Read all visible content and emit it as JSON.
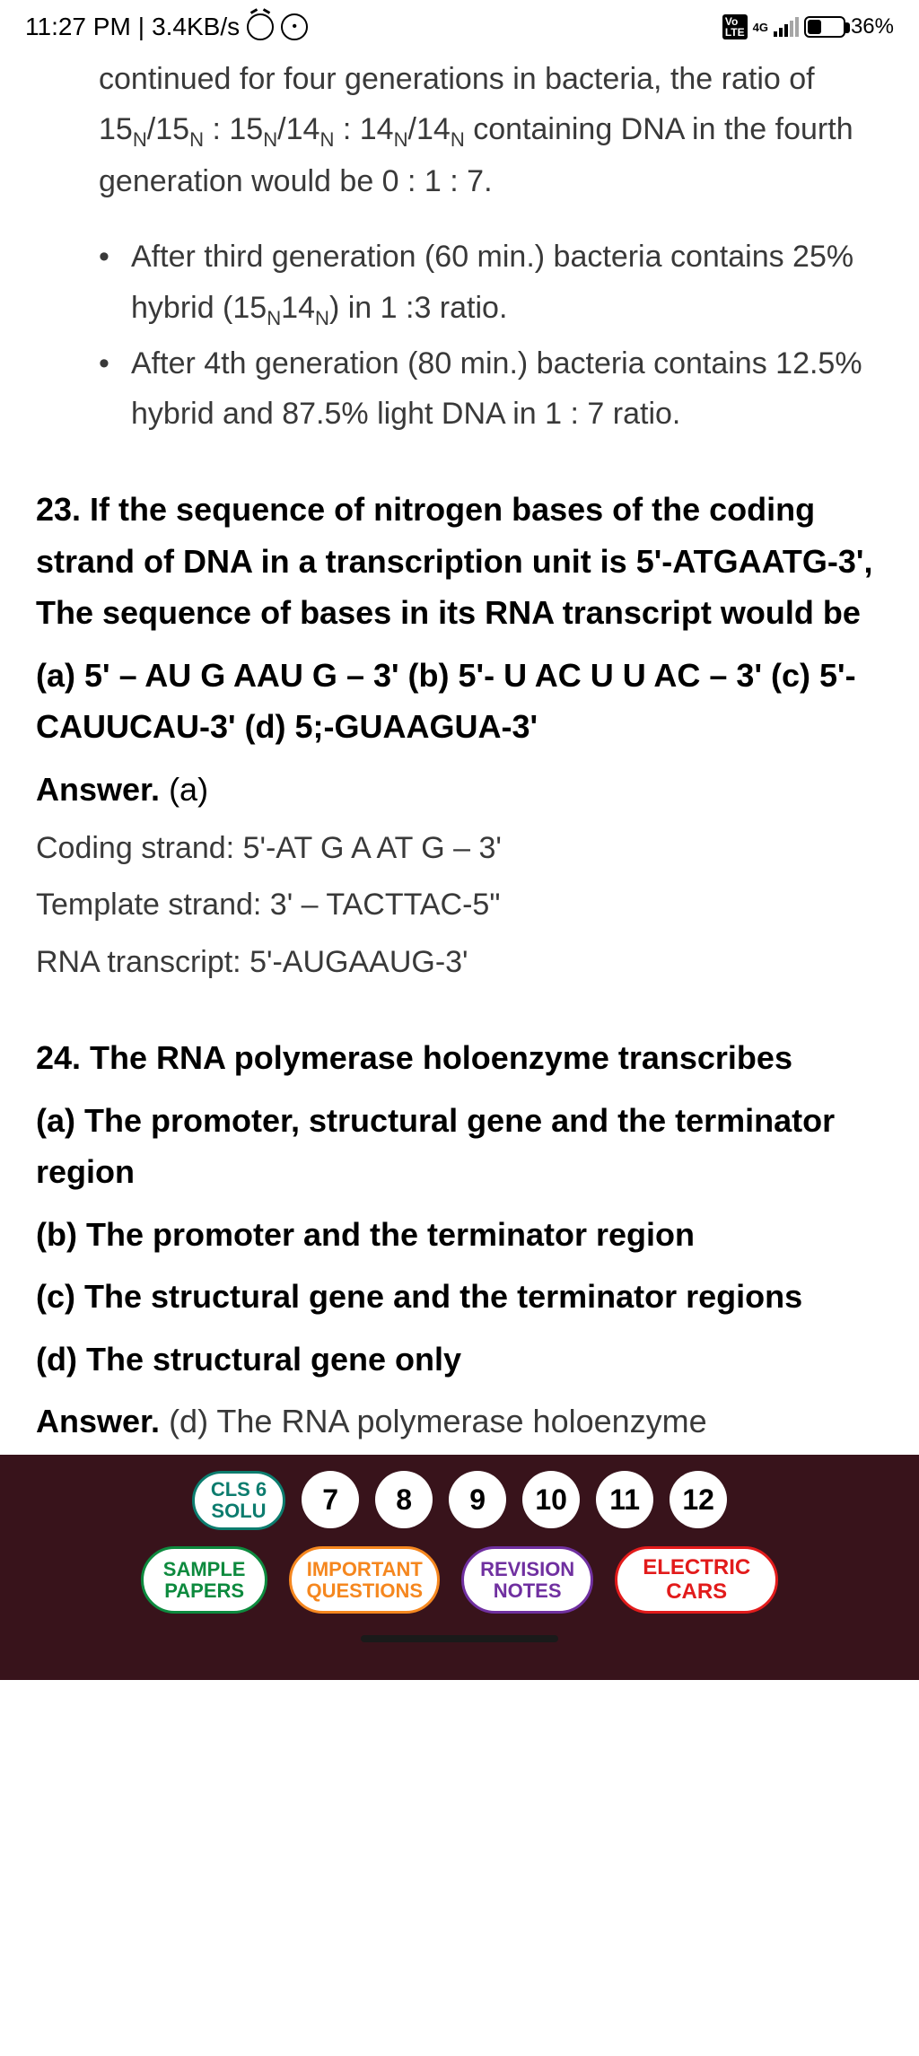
{
  "status": {
    "time": "11:27 PM",
    "speed": "3.4KB/s",
    "network_badge": "Vo LTE",
    "network_gen": "4G",
    "battery_pct": "36%"
  },
  "content": {
    "para1_a": "continued for four generations in bacteria, the ratio of 15",
    "para1_b": "/15",
    "para1_c": " : 15",
    "para1_d": "/14",
    "para1_e": " : 14",
    "para1_f": "/14",
    "para1_g": " containing DNA in the fourth generation would be 0 : 1 : 7.",
    "sub_n": "N",
    "bullet1_a": "After third generation (60 min.) bacteria contains 25% hybrid (15",
    "bullet1_b": "14",
    "bullet1_c": ") in 1 :3 ratio.",
    "bullet2": "After 4th generation (80 min.) bacteria contains 12.5% hybrid and 87.5% light DNA in 1 : 7 ratio.",
    "q23": "23. If the sequence of nitrogen bases of the coding strand of DNA in a transcription unit is 5'-ATGAATG-3', The sequence of bases in its RNA transcript would be",
    "q23_opts": "(a) 5' – AU G AAU G – 3' (b) 5'- U AC U U AC – 3' (c) 5'-CAUUCAU-3' (d) 5;-GUAAGUA-3'",
    "ans_label": "Answer.",
    "q23_ans": " (a)",
    "q23_l1": "Coding strand: 5'-AT G A AT G – 3'",
    "q23_l2": "Template strand: 3' – TACTTAC-5\"",
    "q23_l3": "RNA transcript: 5'-AUGAAUG-3'",
    "q24": "24. The RNA polymerase holoenzyme transcribes",
    "q24_a": "(a) The promoter, structural gene and the terminator region",
    "q24_b": "(b) The promoter and the terminator region",
    "q24_c": "(c) The structural gene and the terminator regions",
    "q24_d": "(d) The structural gene only",
    "q24_ans": " (d) The RNA polymerase holoenzyme"
  },
  "nav": {
    "cls": "CLS 6\nSOLU",
    "n7": "7",
    "n8": "8",
    "n9": "9",
    "n10": "10",
    "n11": "11",
    "n12": "12",
    "sample": "SAMPLE\nPAPERS",
    "important": "IMPORTANT\nQUESTIONS",
    "revision": "REVISION\nNOTES",
    "electric": "ELECTRIC\nCARS"
  },
  "colors": {
    "bottom_bg": "#38131b",
    "green": "#0d8a3e",
    "orange": "#f5871f",
    "purple": "#7030a0",
    "red": "#e21b1b",
    "teal": "#0c7c6e",
    "text_gray": "#393939"
  }
}
